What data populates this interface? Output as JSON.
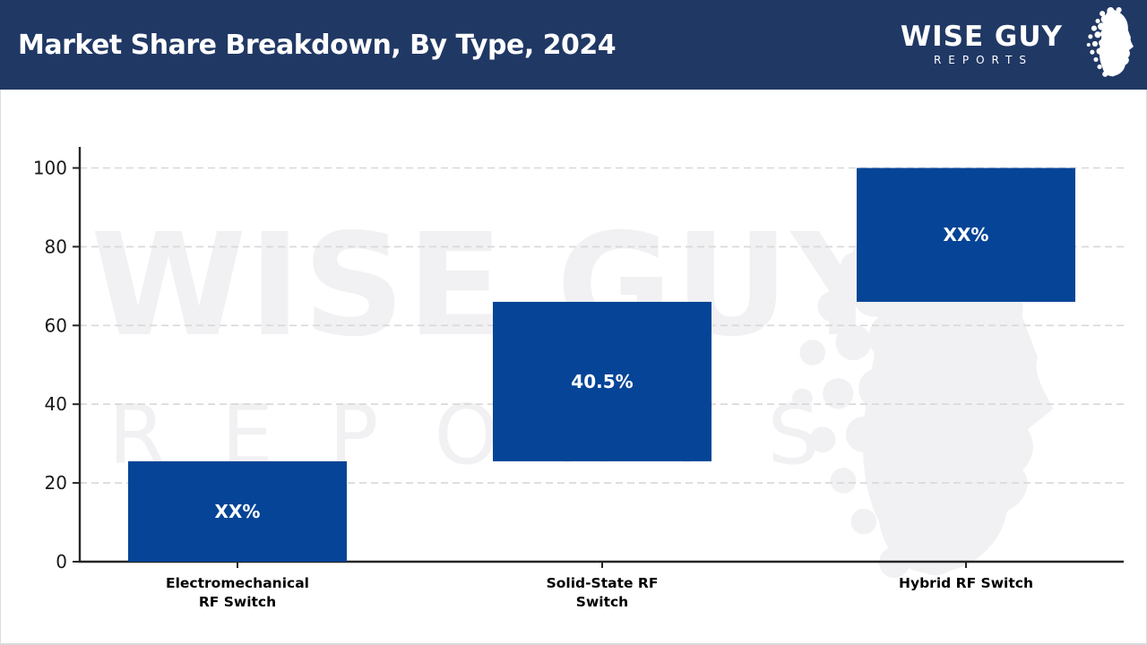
{
  "header": {
    "title": "Market Share Breakdown, By Type, 2024",
    "logo": {
      "name": "WISE GUY",
      "sub": "REPORTS"
    }
  },
  "watermark": {
    "line1": "WISE GUY",
    "line2": "REPORTS"
  },
  "chart_data": {
    "type": "bar",
    "subtype": "waterfall",
    "title": "Market Share Breakdown, By Type, 2024",
    "categories": [
      "Electromechanical RF Switch",
      "Solid-State RF Switch",
      "Hybrid RF Switch"
    ],
    "category_lines": [
      [
        "Electromechanical",
        "RF Switch"
      ],
      [
        "Solid-State RF",
        "Switch"
      ],
      [
        "Hybrid RF Switch"
      ]
    ],
    "segments": [
      {
        "category": "Electromechanical RF Switch",
        "start": 0,
        "end": 25.5,
        "label": "XX%"
      },
      {
        "category": "Solid-State RF Switch",
        "start": 25.5,
        "end": 66,
        "label": "40.5%"
      },
      {
        "category": "Hybrid RF Switch",
        "start": 66,
        "end": 100,
        "label": "XX%"
      }
    ],
    "ylim": [
      0,
      100
    ],
    "yticks": [
      0,
      20,
      40,
      60,
      80,
      100
    ],
    "grid": "horizontal-dashed",
    "legend": null,
    "bar_color": "#054496",
    "bar_label_color": "#ffffff",
    "axis_color": "#262626",
    "grid_color": "#d8d8d8"
  },
  "colors": {
    "header_bg": "#203864",
    "header_text": "#ffffff",
    "watermark": "#f1f1f3",
    "background": "#ffffff"
  }
}
